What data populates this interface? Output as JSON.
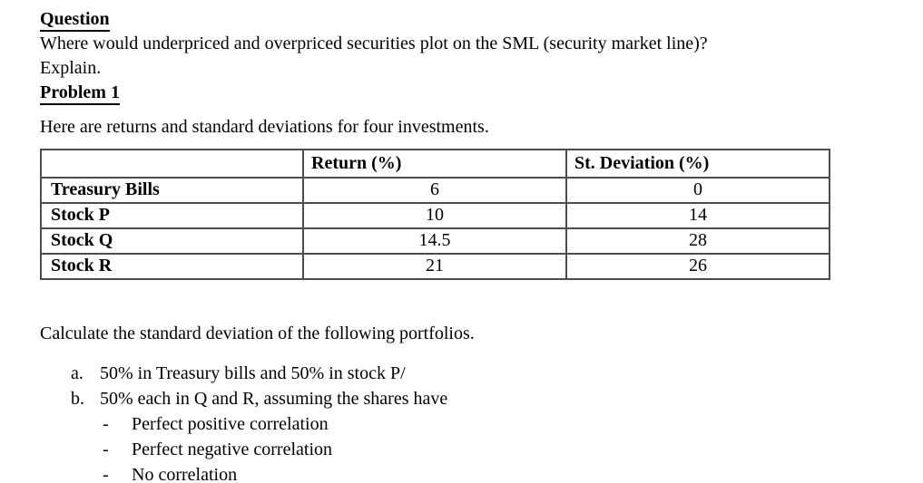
{
  "document": {
    "question_heading": "Question",
    "question_text": "Where would underpriced and overpriced securities plot on the SML (security market line)?",
    "question_explain": "Explain.",
    "problem_heading": "Problem 1",
    "intro_text": "Here are returns and standard deviations for four investments.",
    "table": {
      "headers": [
        "",
        "Return (%)",
        "St. Deviation (%)"
      ],
      "rows": [
        {
          "label": "Treasury Bills",
          "return": "6",
          "st_dev": "0"
        },
        {
          "label": "Stock P",
          "return": "10",
          "st_dev": "14"
        },
        {
          "label": "Stock Q",
          "return": "14.5",
          "st_dev": "28"
        },
        {
          "label": "Stock R",
          "return": "21",
          "st_dev": "26"
        }
      ]
    },
    "calculate_instruction": "Calculate the standard deviation of the following portfolios.",
    "list_items": [
      {
        "marker": "a.",
        "text": "50% in Treasury bills and 50% in stock P/"
      },
      {
        "marker": "b.",
        "text": "50% each in Q and R, assuming the shares have"
      }
    ],
    "sub_items": [
      {
        "marker": "-",
        "text": "Perfect positive correlation"
      },
      {
        "marker": "-",
        "text": "Perfect negative correlation"
      },
      {
        "marker": "-",
        "text": "No correlation"
      }
    ]
  },
  "colors": {
    "text": "#000000",
    "table_border": "#4d4d4d",
    "background": "#ffffff"
  }
}
